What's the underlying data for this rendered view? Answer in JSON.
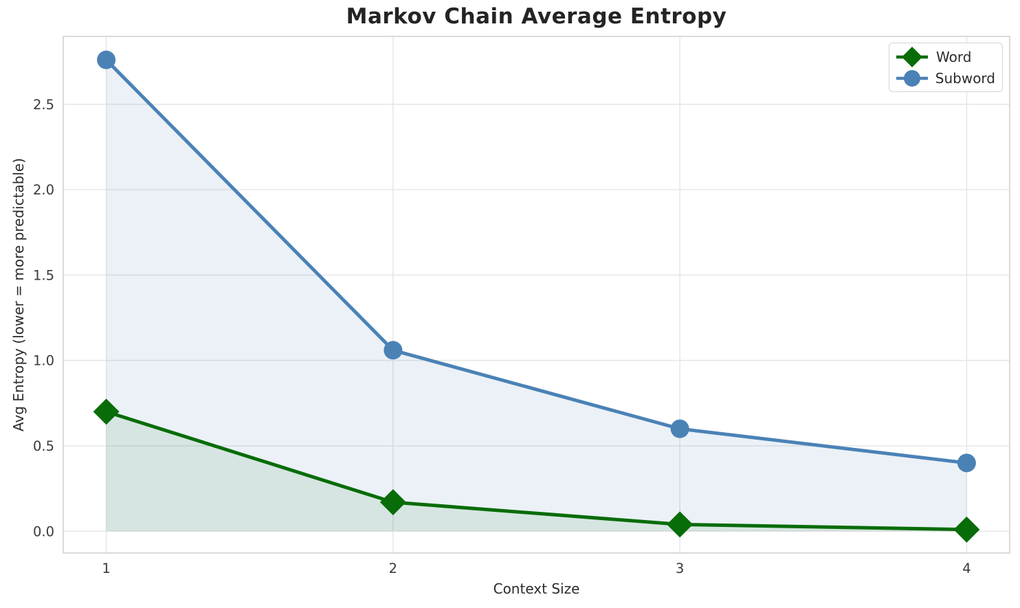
{
  "chart_data": {
    "type": "line",
    "title": "Markov Chain Average Entropy",
    "xlabel": "Context Size",
    "ylabel": "Avg Entropy (lower = more predictable)",
    "x": [
      1,
      2,
      3,
      4
    ],
    "series": [
      {
        "name": "Word",
        "marker": "diamond",
        "color": "#086c08",
        "fill_opacity": 0.09,
        "values": [
          0.7,
          0.17,
          0.04,
          0.01
        ]
      },
      {
        "name": "Subword",
        "marker": "circle",
        "color": "#4a82b6",
        "fill_opacity": 0.11,
        "values": [
          2.76,
          1.06,
          0.6,
          0.4
        ]
      }
    ],
    "xticks": [
      "1",
      "2",
      "3",
      "4"
    ],
    "yticks": [
      "0.0",
      "0.5",
      "1.0",
      "1.5",
      "2.0",
      "2.5"
    ],
    "xlim": [
      0.85,
      4.15
    ],
    "ylim": [
      -0.1275,
      2.8975
    ],
    "grid": true,
    "fill_to_zero": true,
    "legend_position": "upper right",
    "colors": {
      "grid": "#e7e7e7",
      "spine": "#d6d6d6",
      "tick_text": "#3a3a3a",
      "background": "#ffffff"
    }
  }
}
